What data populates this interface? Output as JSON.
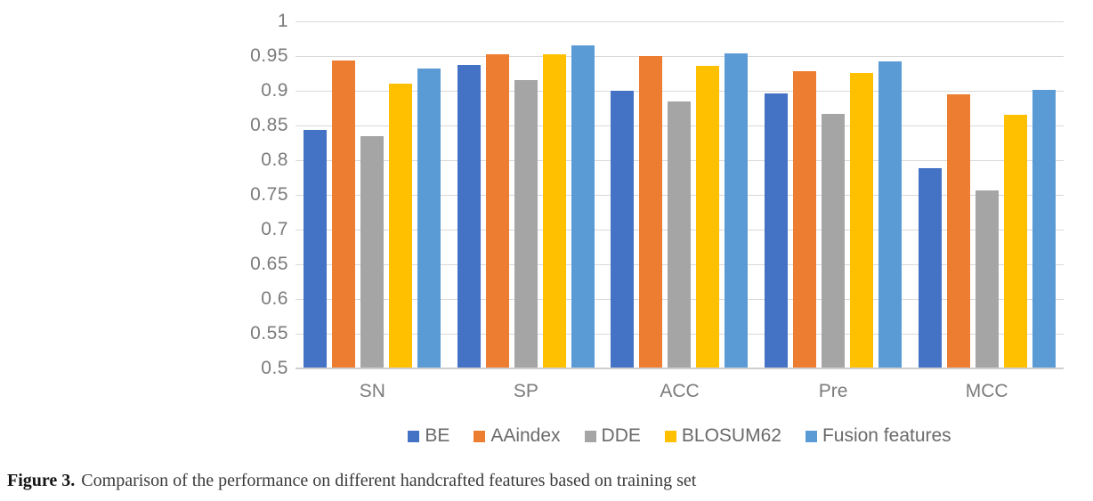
{
  "chart_data": {
    "type": "bar",
    "title": "",
    "xlabel": "",
    "ylabel": "",
    "categories": [
      "SN",
      "SP",
      "ACC",
      "Pre",
      "MCC"
    ],
    "series": [
      {
        "name": "BE",
        "color": "#4472C4",
        "values": [
          0.844,
          0.937,
          0.9,
          0.896,
          0.789
        ]
      },
      {
        "name": "AAindex",
        "color": "#ED7D31",
        "values": [
          0.944,
          0.952,
          0.95,
          0.928,
          0.895
        ]
      },
      {
        "name": "DDE",
        "color": "#A5A5A5",
        "values": [
          0.835,
          0.916,
          0.885,
          0.867,
          0.757
        ]
      },
      {
        "name": "BLOSUM62",
        "color": "#FFC000",
        "values": [
          0.91,
          0.952,
          0.936,
          0.926,
          0.866
        ]
      },
      {
        "name": "Fusion features",
        "color": "#5B9BD5",
        "values": [
          0.932,
          0.966,
          0.954,
          0.942,
          0.901
        ]
      }
    ],
    "ylim": [
      0.5,
      1.0
    ],
    "ytick_step": 0.05,
    "ytick_labels": [
      "1",
      "0.95",
      "0.9",
      "0.85",
      "0.8",
      "0.75",
      "0.7",
      "0.65",
      "0.6",
      "0.55",
      "0.5"
    ],
    "grid": true,
    "legend_position": "bottom"
  },
  "caption": {
    "label": "Figure 3.",
    "text": "Comparison of the performance on different handcrafted features based on training set"
  },
  "colors": {
    "gridline": "#d9d9d9",
    "axis_line": "#cfcfcf",
    "tick_label_text": "#7b7b7b",
    "legend_text": "#6a6a6a",
    "caption_label_text": "#141414",
    "caption_text": "#3a3a3a",
    "background": "#ffffff"
  }
}
